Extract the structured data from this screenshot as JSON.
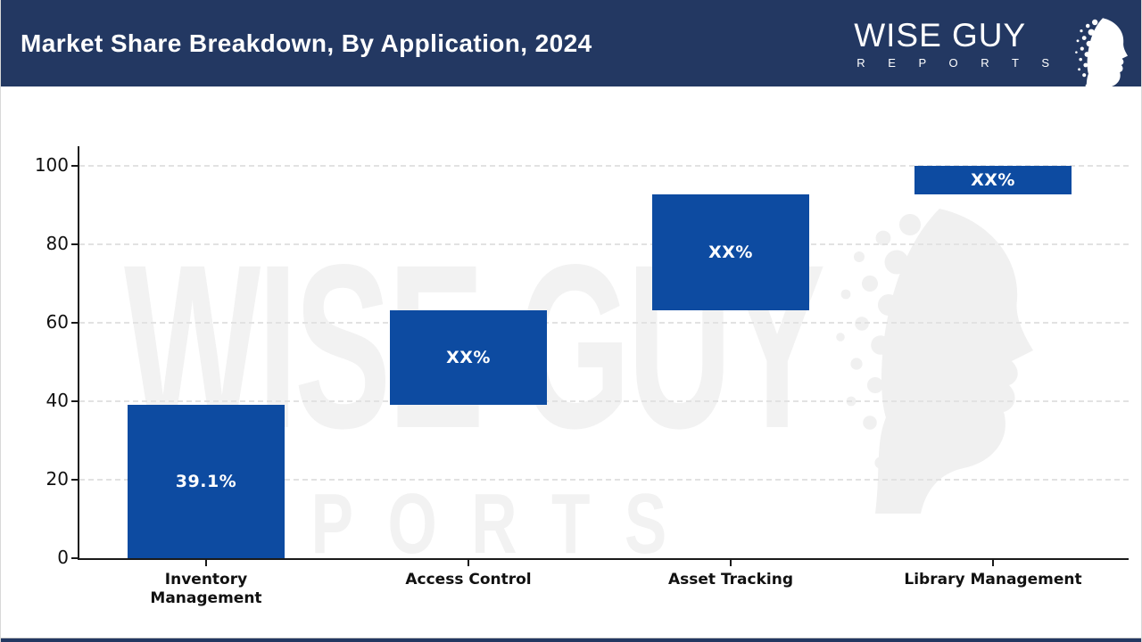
{
  "header": {
    "title": "Market Share Breakdown, By Application, 2024",
    "bg_color": "#233862",
    "logo": {
      "line1": "WISE GUY",
      "line2": "R E P O R T S"
    }
  },
  "watermark": {
    "line1": "WISE GUY",
    "line2": "REPORTS",
    "color": "#f2f2f2"
  },
  "chart_data": {
    "type": "bar",
    "subtype": "floating-waterfall",
    "title": "Market Share Breakdown, By Application, 2024",
    "categories": [
      "Inventory Management",
      "Access Control",
      "Asset Tracking",
      "Library Management"
    ],
    "bars": [
      {
        "category": "Inventory Management",
        "category_lines": [
          "Inventory",
          "Management"
        ],
        "start": 0,
        "end": 39.1,
        "label": "39.1%"
      },
      {
        "category": "Access Control",
        "category_lines": [
          "Access Control"
        ],
        "start": 39.1,
        "end": 63.2,
        "label": "XX%"
      },
      {
        "category": "Asset Tracking",
        "category_lines": [
          "Asset Tracking"
        ],
        "start": 63.2,
        "end": 92.8,
        "label": "XX%"
      },
      {
        "category": "Library Management",
        "category_lines": [
          "Library Management"
        ],
        "start": 92.8,
        "end": 100.0,
        "label": "XX%"
      }
    ],
    "xlabel": "",
    "ylabel": "",
    "yticks": [
      0,
      20,
      40,
      60,
      80,
      100
    ],
    "ylim": [
      0,
      105
    ],
    "grid": {
      "horizontal": true,
      "style": "dashed",
      "color": "#e2e2e2"
    },
    "legend": "none",
    "bar_color": "#0d4ba1",
    "bar_label_color": "#ffffff"
  }
}
